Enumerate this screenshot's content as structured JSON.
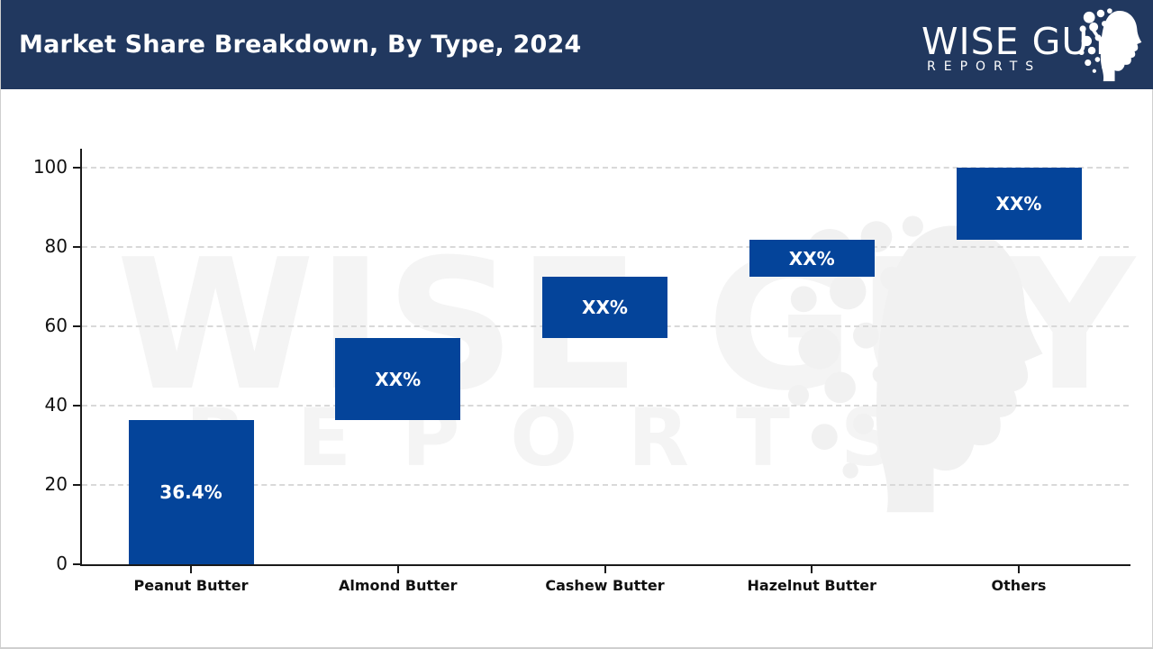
{
  "header": {
    "title": "Market Share Breakdown, By Type, 2024",
    "logo": {
      "line1": "WISE GUY",
      "line2": "REPORTS"
    }
  },
  "watermark": {
    "line1": "WISE GUY",
    "line2": "REPORTS"
  },
  "chart_data": {
    "type": "bar",
    "subtype": "waterfall",
    "title": "Market Share Breakdown, By Type, 2024",
    "categories": [
      "Peanut Butter",
      "Almond Butter",
      "Cashew Butter",
      "Hazelnut Butter",
      "Others"
    ],
    "segments": [
      {
        "category": "Peanut Butter",
        "start": 0,
        "end": 36.4,
        "label": "36.4%"
      },
      {
        "category": "Almond Butter",
        "start": 36.4,
        "end": 57.0,
        "label": "XX%"
      },
      {
        "category": "Cashew Butter",
        "start": 57.0,
        "end": 72.5,
        "label": "XX%"
      },
      {
        "category": "Hazelnut Butter",
        "start": 72.5,
        "end": 81.8,
        "label": "XX%"
      },
      {
        "category": "Others",
        "start": 81.8,
        "end": 100,
        "label": "XX%"
      }
    ],
    "yticks": [
      0,
      20,
      40,
      60,
      80,
      100
    ],
    "ylim": [
      0,
      105
    ],
    "xlabel": "",
    "ylabel": "",
    "grid": "horizontal-dashed",
    "legend": "none",
    "bar_color": "#04449a",
    "bar_label_color": "#ffffff"
  },
  "colors": {
    "header_bg": "#21385f",
    "bar": "#04449a",
    "grid": "#d9d9d9",
    "axis": "#1a1a1a",
    "watermark": "#f4f4f4",
    "frame_border": "#cfcfcf"
  }
}
